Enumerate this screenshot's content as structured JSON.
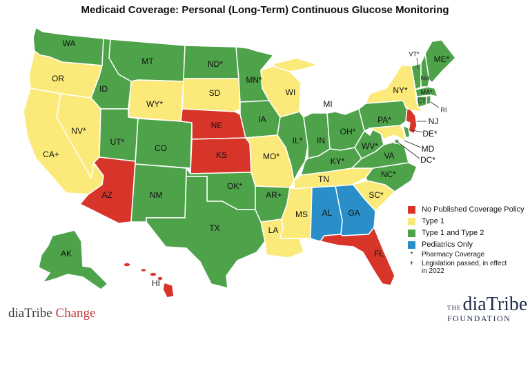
{
  "title": "Medicaid Coverage: Personal (Long-Term) Continuous Glucose Monitoring",
  "colors": {
    "none": "#d8352a",
    "type1": "#fbea7a",
    "type1and2": "#4ea24a",
    "pediatrics": "#2a8fc8"
  },
  "states": {
    "WA": {
      "label": "WA",
      "status": "type1and2"
    },
    "OR": {
      "label": "OR",
      "status": "type1"
    },
    "CA": {
      "label": "CA+",
      "status": "type1"
    },
    "ID": {
      "label": "ID",
      "status": "type1and2"
    },
    "NV": {
      "label": "NV*",
      "status": "type1"
    },
    "MT": {
      "label": "MT",
      "status": "type1and2"
    },
    "WY": {
      "label": "WY*",
      "status": "type1"
    },
    "UT": {
      "label": "UT*",
      "status": "type1and2"
    },
    "AZ": {
      "label": "AZ",
      "status": "none"
    },
    "CO": {
      "label": "CO",
      "status": "type1and2"
    },
    "NM": {
      "label": "NM",
      "status": "type1and2"
    },
    "ND": {
      "label": "ND*",
      "status": "type1and2"
    },
    "SD": {
      "label": "SD",
      "status": "type1"
    },
    "NE": {
      "label": "NE",
      "status": "none"
    },
    "KS": {
      "label": "KS",
      "status": "none"
    },
    "OK": {
      "label": "OK*",
      "status": "type1and2"
    },
    "TX": {
      "label": "TX",
      "status": "type1and2"
    },
    "MN": {
      "label": "MN*",
      "status": "type1and2"
    },
    "IA": {
      "label": "IA",
      "status": "type1and2"
    },
    "MO": {
      "label": "MO*",
      "status": "type1"
    },
    "AR": {
      "label": "AR+",
      "status": "type1and2"
    },
    "LA": {
      "label": "LA",
      "status": "type1"
    },
    "WI": {
      "label": "WI",
      "status": "type1"
    },
    "IL": {
      "label": "IL*",
      "status": "type1and2"
    },
    "MI": {
      "label": "MI",
      "status": "type1"
    },
    "IN": {
      "label": "IN",
      "status": "type1and2"
    },
    "OH": {
      "label": "OH*",
      "status": "type1and2"
    },
    "KY": {
      "label": "KY*",
      "status": "type1and2"
    },
    "TN": {
      "label": "TN",
      "status": "type1"
    },
    "MS": {
      "label": "MS",
      "status": "type1"
    },
    "AL": {
      "label": "AL",
      "status": "pediatrics"
    },
    "GA": {
      "label": "GA",
      "status": "pediatrics"
    },
    "FL": {
      "label": "FL",
      "status": "none"
    },
    "SC": {
      "label": "SC*",
      "status": "type1"
    },
    "NC": {
      "label": "NC*",
      "status": "type1and2"
    },
    "VA": {
      "label": "VA",
      "status": "type1and2"
    },
    "WV": {
      "label": "WV*",
      "status": "type1and2"
    },
    "PA": {
      "label": "PA*",
      "status": "type1and2"
    },
    "NY": {
      "label": "NY*",
      "status": "type1"
    },
    "NJ": {
      "label": "NJ",
      "status": "none"
    },
    "DE": {
      "label": "DE*",
      "status": "type1and2"
    },
    "MD": {
      "label": "MD",
      "status": "type1"
    },
    "DC": {
      "label": "DC*",
      "status": "type1and2"
    },
    "VT": {
      "label": "VT*",
      "status": "type1and2"
    },
    "NH": {
      "label": "NH",
      "status": "type1and2"
    },
    "ME": {
      "label": "ME*",
      "status": "type1and2"
    },
    "MA": {
      "label": "MA*",
      "status": "type1and2"
    },
    "CT": {
      "label": "CT",
      "status": "type1and2"
    },
    "RI": {
      "label": "RI",
      "status": "type1and2"
    },
    "AK": {
      "label": "AK",
      "status": "type1and2"
    },
    "HI": {
      "label": "HI",
      "status": "none"
    }
  },
  "legend": [
    {
      "label": "No Published Coverage Policy",
      "status": "none"
    },
    {
      "label": "Type 1",
      "status": "type1"
    },
    {
      "label": "Type 1 and Type 2",
      "status": "type1and2"
    },
    {
      "label": "Pediatrics Only",
      "status": "pediatrics"
    }
  ],
  "notes": [
    {
      "symbol": "*",
      "text": "Pharmacy Coverage"
    },
    {
      "symbol": "+",
      "text": "Legislation passed, in effect in 2022"
    }
  ],
  "branding": {
    "left_main": "diaTribe",
    "left_accent": "Change",
    "right_prefix": "THE",
    "right_name": "diaTribe",
    "right_suffix": "FOUNDATION"
  }
}
